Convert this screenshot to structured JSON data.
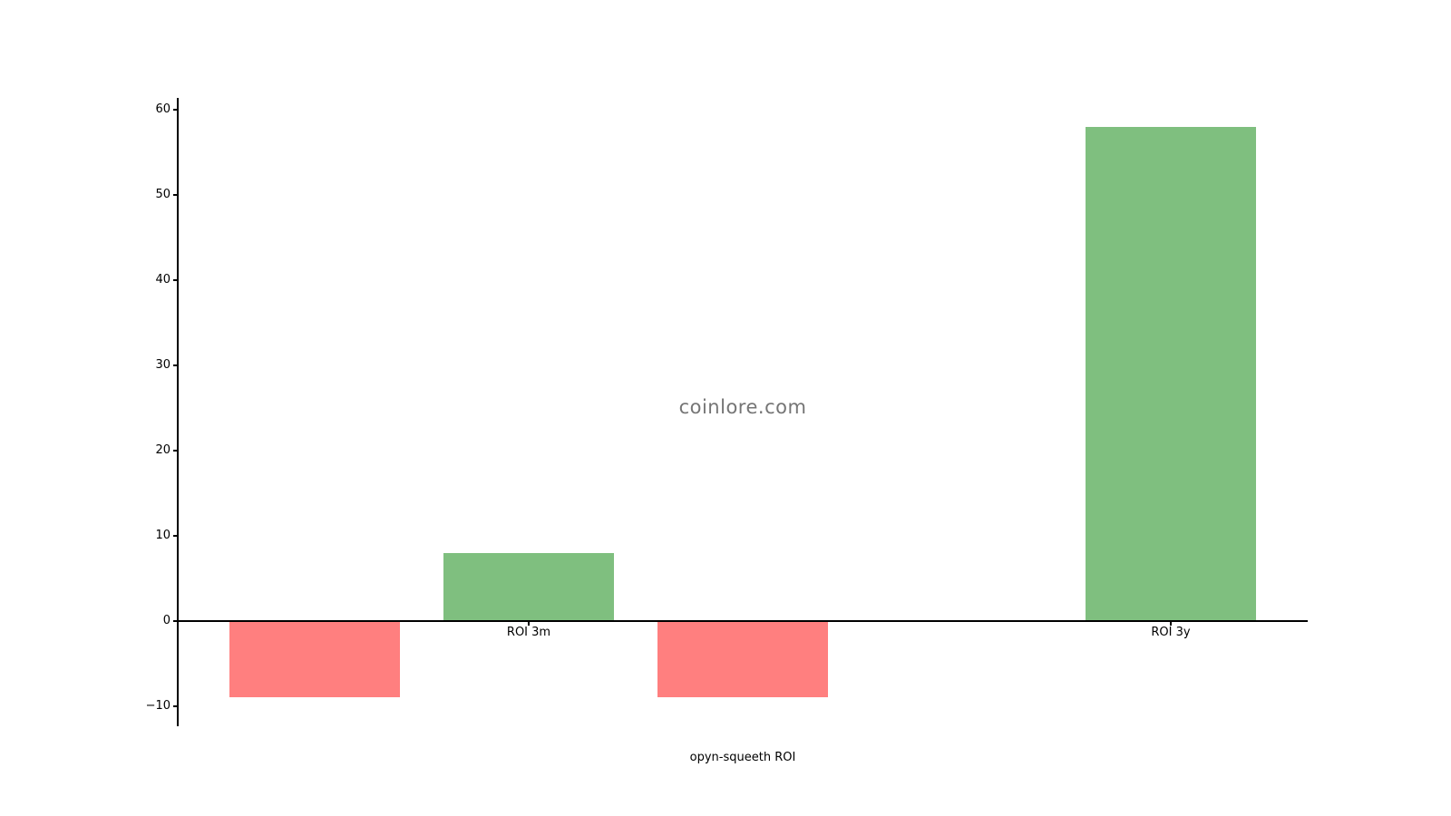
{
  "chart_data": {
    "type": "bar",
    "title": "",
    "xlabel": "opyn-squeeth ROI",
    "ylabel": "",
    "watermark": "coinlore.com",
    "ylim": [
      -12.35,
      61.35
    ],
    "num_slots": 5,
    "grid": false,
    "legend": "none",
    "yticks": [
      {
        "value": 60,
        "label": "60"
      },
      {
        "value": 50,
        "label": "50"
      },
      {
        "value": 40,
        "label": "40"
      },
      {
        "value": 30,
        "label": "30"
      },
      {
        "value": 20,
        "label": "20"
      },
      {
        "value": 10,
        "label": "10"
      },
      {
        "value": 0,
        "label": "0"
      },
      {
        "value": -10,
        "label": "−10"
      }
    ],
    "bars": [
      {
        "slot": 0,
        "label": "",
        "value": -9,
        "color": "#ff7f7f"
      },
      {
        "slot": 1,
        "label": "ROI 3m",
        "value": 8,
        "color": "#7fbf7f"
      },
      {
        "slot": 2,
        "label": "",
        "value": -9,
        "color": "#ff7f7f"
      },
      {
        "slot": 4,
        "label": "ROI 3y",
        "value": 58,
        "color": "#7fbf7f"
      }
    ],
    "colors": {
      "positive": "#7fbf7f",
      "negative": "#ff7f7f",
      "axis": "#000000",
      "watermark": "#757575"
    }
  }
}
